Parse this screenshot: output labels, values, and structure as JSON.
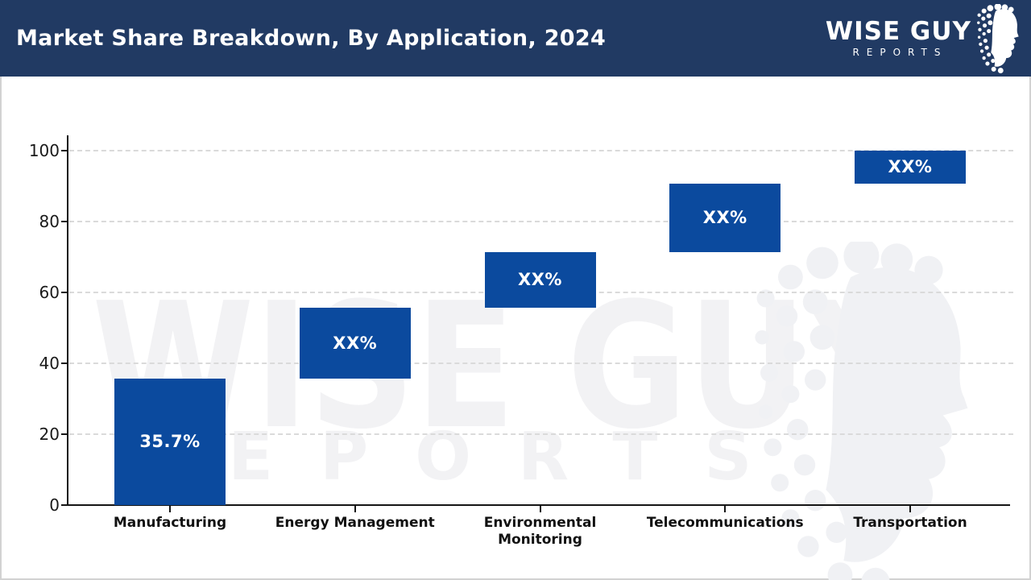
{
  "header": {
    "title": "Market Share Breakdown, By Application, 2024",
    "logo": {
      "line1": "WISE GUY",
      "line2": "REPORTS"
    }
  },
  "watermark": {
    "line1": "WISE GUY",
    "line2": "REPORTS"
  },
  "colors": {
    "header_bg": "#213a63",
    "bar_blue": "#0b4a9e",
    "grid_gray": "#dadada",
    "axis_black": "#151515",
    "watermark_gray": "#f2f2f4"
  },
  "chart_data": {
    "type": "bar",
    "subtype": "waterfall",
    "title": "Market Share Breakdown, By Application, 2024",
    "xlabel": "",
    "ylabel": "",
    "ylim": [
      0,
      100
    ],
    "yticks": [
      0,
      20,
      40,
      60,
      80,
      100
    ],
    "ytick_labels": [
      "0",
      "20",
      "40",
      "60",
      "80",
      "100"
    ],
    "grid": "horizontal-dashed",
    "legend": "none",
    "categories": [
      "Manufacturing",
      "Energy Management",
      "Environmental\nMonitoring",
      "Telecommunications",
      "Transportation"
    ],
    "segments": [
      {
        "category": "Manufacturing",
        "start": 0,
        "end": 35.7,
        "value": 35.7,
        "label": "35.7%"
      },
      {
        "category": "Energy Management",
        "start": 35.7,
        "end": 55.7,
        "value": 20.0,
        "label": "XX%"
      },
      {
        "category": "Environmental Monitoring",
        "start": 55.7,
        "end": 71.4,
        "value": 15.7,
        "label": "XX%"
      },
      {
        "category": "Telecommunications",
        "start": 71.4,
        "end": 90.7,
        "value": 19.3,
        "label": "XX%"
      },
      {
        "category": "Transportation",
        "start": 90.7,
        "end": 100.0,
        "value": 9.3,
        "label": "XX%"
      }
    ]
  }
}
